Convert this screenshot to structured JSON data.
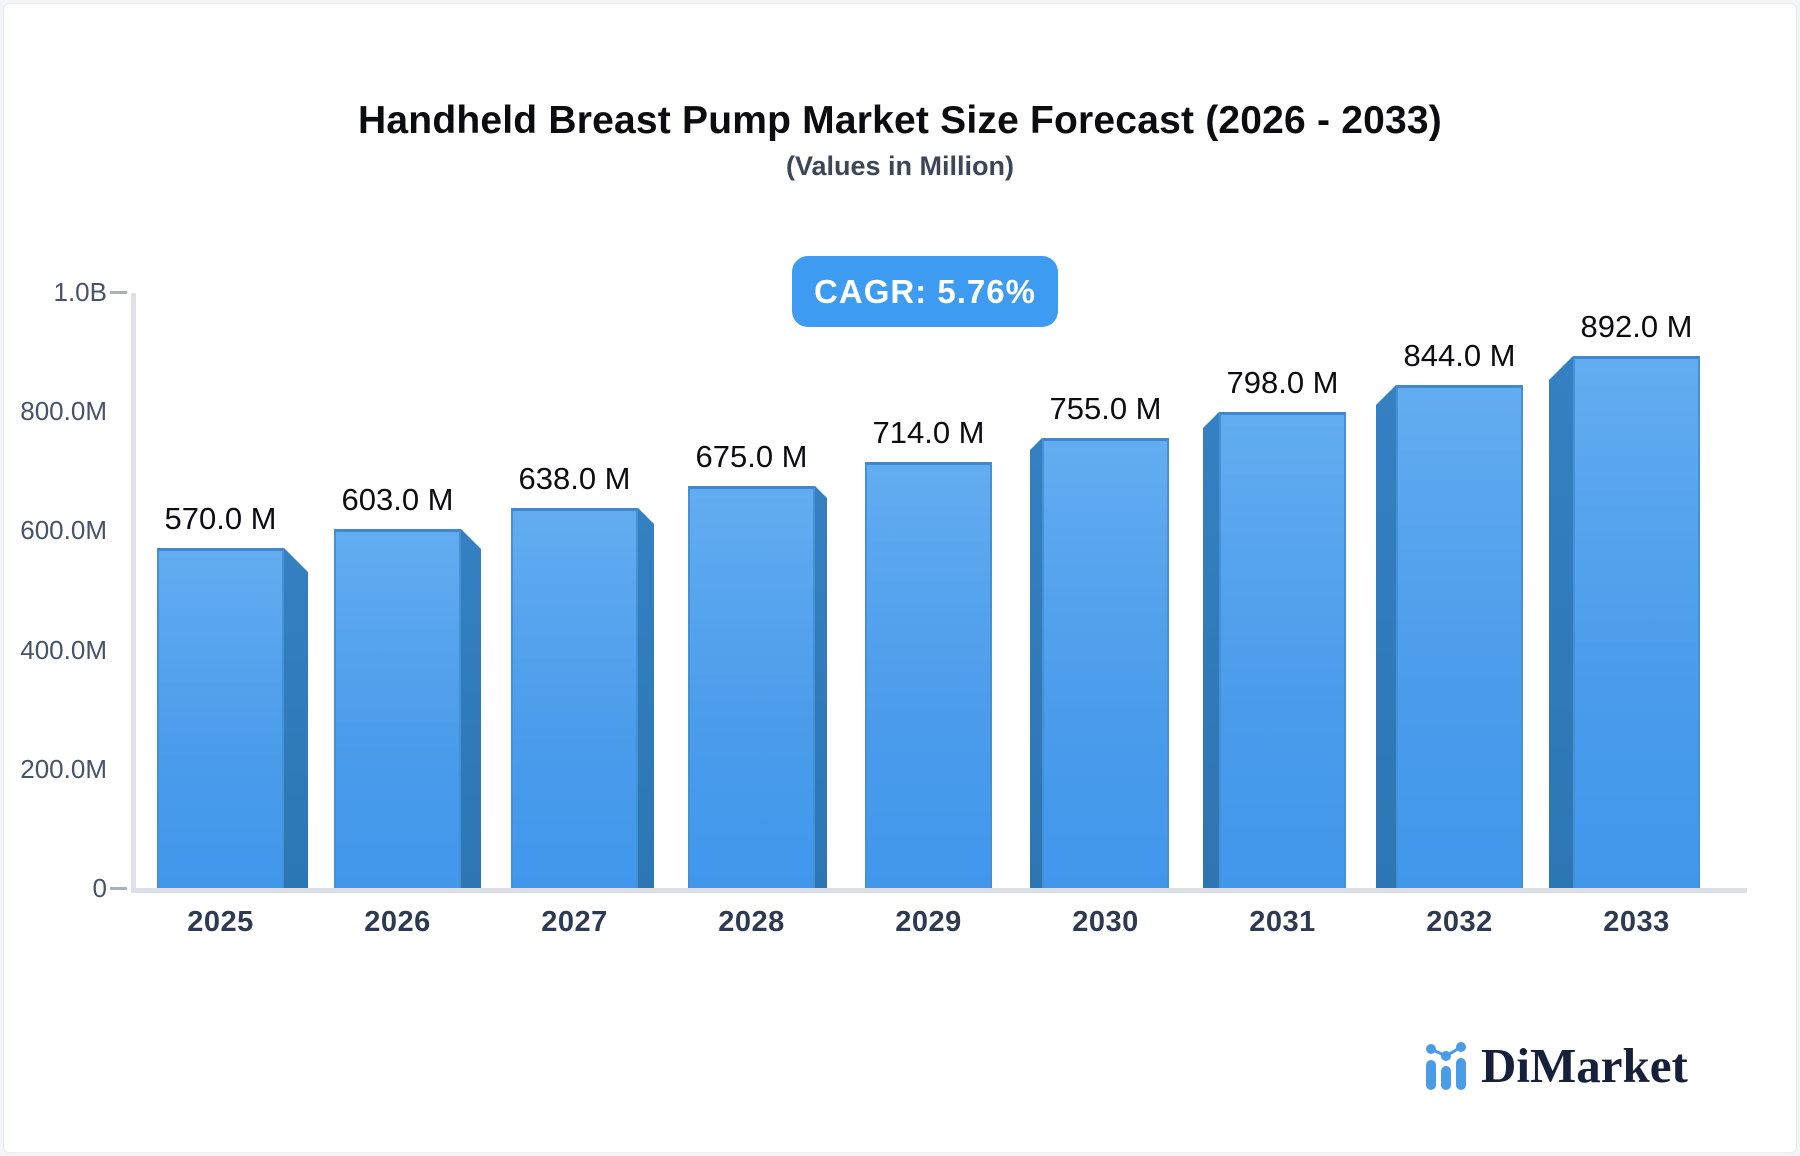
{
  "header": {
    "title": "Handheld Breast Pump Market Size Forecast (2026 - 2033)",
    "subtitle": "(Values in Million)"
  },
  "chart_data": {
    "type": "bar",
    "title": "Handheld Breast Pump Market Size Forecast (2026 - 2033)",
    "subtitle": "(Values in Million)",
    "annotation": "CAGR: 5.76%",
    "categories": [
      "2025",
      "2026",
      "2027",
      "2028",
      "2029",
      "2030",
      "2031",
      "2032",
      "2033"
    ],
    "values_millions": [
      570,
      603,
      638,
      675,
      714,
      755,
      798,
      844,
      892
    ],
    "value_labels": [
      "570.0 M",
      "603.0 M",
      "638.0 M",
      "675.0 M",
      "714.0 M",
      "755.0 M",
      "798.0 M",
      "844.0 M",
      "892.0 M"
    ],
    "ylabel": "",
    "xlabel": "",
    "ylim_millions": [
      0,
      1000
    ],
    "y_ticks": [
      {
        "label": "0",
        "value_millions": 0,
        "dash": true
      },
      {
        "label": "200.0M",
        "value_millions": 200,
        "dash": false
      },
      {
        "label": "400.0M",
        "value_millions": 400,
        "dash": false
      },
      {
        "label": "600.0M",
        "value_millions": 600,
        "dash": false
      },
      {
        "label": "800.0M",
        "value_millions": 800,
        "dash": false
      },
      {
        "label": "1.0B",
        "value_millions": 1000,
        "dash": true
      }
    ],
    "grid": false,
    "legend": "none",
    "bar_style": "3d-central-perspective",
    "colors": {
      "bar_face_top": "#63acf1",
      "bar_face_bottom": "#4097ec",
      "bar_top_edge": "#3e88cb",
      "bar_side_panel": "#2f7cba",
      "badge_blue": "#3d9cf1",
      "axis_line": "#dfe2e8",
      "tick_dash": "#aab1bd",
      "y_label": "#46536b",
      "x_label": "#2d3a52",
      "value_label": "#0b0d12"
    }
  },
  "badge": {
    "label": "CAGR: 5.76%",
    "color": "#3d9cf1"
  },
  "logo": {
    "text": "DiMarket",
    "icon": "bar-chart-logo-icon",
    "text_color": "#17203b",
    "icon_color": "#4a9ce8"
  }
}
